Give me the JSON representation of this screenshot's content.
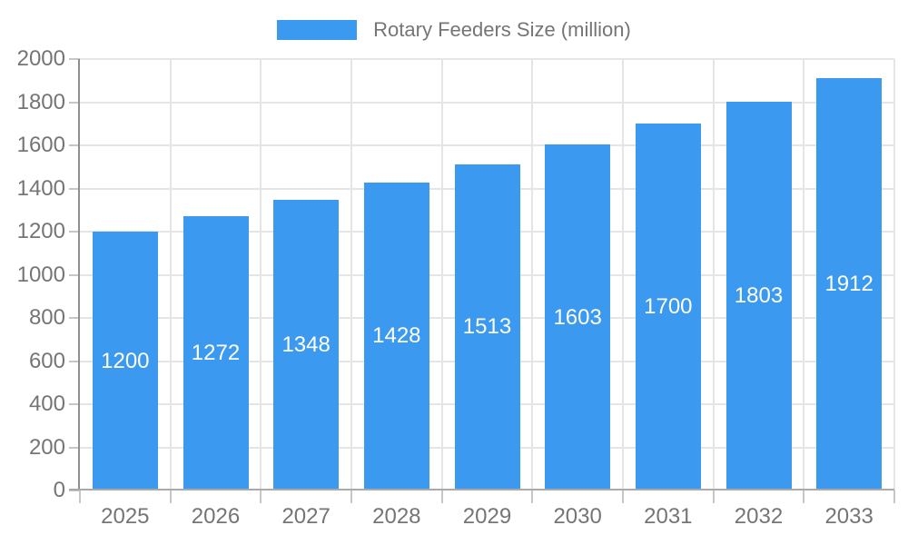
{
  "chart_data": {
    "type": "bar",
    "title": "Rotary Feeders Size (million)",
    "legend": {
      "label": "Rotary Feeders Size (million)",
      "position": "top"
    },
    "categories": [
      "2025",
      "2026",
      "2027",
      "2028",
      "2029",
      "2030",
      "2031",
      "2032",
      "2033"
    ],
    "values": [
      1200,
      1272,
      1348,
      1428,
      1513,
      1603,
      1700,
      1803,
      1912
    ],
    "data_labels": [
      "1200",
      "1272",
      "1348",
      "1428",
      "1513",
      "1603",
      "1700",
      "1803",
      "1912"
    ],
    "xlabel": "",
    "ylabel": "",
    "ylim": [
      0,
      2000
    ],
    "y_ticks": [
      0,
      200,
      400,
      600,
      800,
      1000,
      1200,
      1400,
      1600,
      1800,
      2000
    ],
    "grid": true,
    "colors": {
      "bar": "#3B99F0",
      "bar_label_text": "#FFFFFF",
      "axis_text": "#757575",
      "gridline": "#E5E5E5",
      "tick_mark": "#C6C6C6",
      "y_axis_line": "#8F8F8F",
      "x_axis_line": "#A9A9A9",
      "background": "#FFFFFF"
    }
  }
}
